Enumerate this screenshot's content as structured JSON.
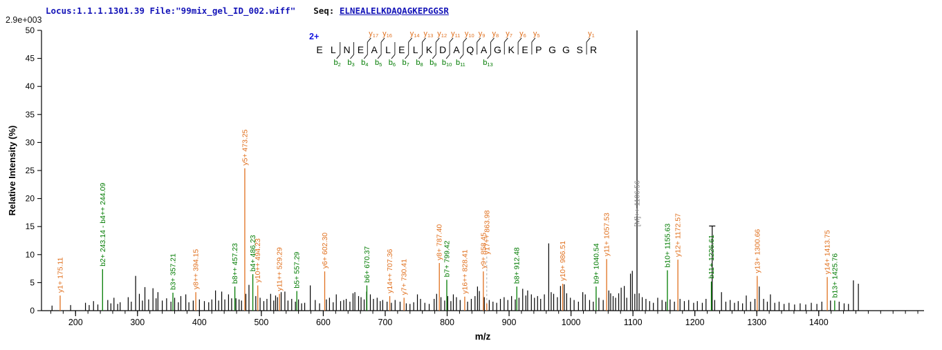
{
  "header": {
    "locus_file": "Locus:1.1.1.1301.39 File:\"99mix_gel_ID_002.wiff\"",
    "seq_label": "Seq:",
    "sequence": "ELNEALELKDAQAGKEPGGSR",
    "intensity_scale": "2.9e+003"
  },
  "colors": {
    "y_ion": "#e0701e",
    "b_ion": "#007b00",
    "precursor_label": "#808080",
    "peak": "#000000",
    "axis": "#000000",
    "header_blue": "#1414b8",
    "charge_blue": "#1414e0",
    "dashed_connector": "#aaaaaa"
  },
  "annotation": {
    "charge": "2+",
    "residues": [
      "E",
      "L",
      "N",
      "E",
      "A",
      "L",
      "E",
      "L",
      "K",
      "D",
      "A",
      "Q",
      "A",
      "G",
      "K",
      "E",
      "P",
      "G",
      "G",
      "S",
      "R"
    ],
    "gaps": [
      {
        "after": 2,
        "b": "2"
      },
      {
        "after": 3,
        "b": "3"
      },
      {
        "after": 4,
        "b": "4",
        "y": "17"
      },
      {
        "after": 5,
        "b": "5",
        "y": "16"
      },
      {
        "after": 6,
        "b": "6"
      },
      {
        "after": 7,
        "b": "7",
        "y": "14"
      },
      {
        "after": 8,
        "b": "8",
        "y": "13"
      },
      {
        "after": 9,
        "b": "9",
        "y": "12"
      },
      {
        "after": 10,
        "b": "10",
        "y": "11"
      },
      {
        "after": 11,
        "b": "11",
        "y": "10"
      },
      {
        "after": 12,
        "y": "9"
      },
      {
        "after": 13,
        "b": "13",
        "y": "8"
      },
      {
        "after": 14,
        "y": "7"
      },
      {
        "after": 15,
        "y": "6"
      },
      {
        "after": 16,
        "y": "5"
      },
      {
        "after": 20,
        "y": "1"
      }
    ]
  },
  "chart_data": {
    "type": "bar",
    "subtype": "ms2-fragment-spectrum",
    "xlabel": "m/z",
    "ylabel": "Relative  Intensity (%)",
    "x_range": [
      145,
      1570
    ],
    "y_range": [
      0,
      50
    ],
    "y_tick_step": 5,
    "x_minor_tick_step": 20,
    "x_major_ticks": [
      200,
      300,
      400,
      500,
      600,
      700,
      800,
      900,
      1000,
      1100,
      1200,
      1300,
      1400
    ],
    "grid": false,
    "labeled_peaks": [
      {
        "label": "y1+ 175.11",
        "mz": 175.11,
        "intensity": 2.7,
        "t": "y"
      },
      {
        "label": "b2+ 243.14 - b4++ 244.09",
        "mz": 243.6,
        "intensity": 7.4,
        "t": "b"
      },
      {
        "label": "b3+ 357.21",
        "mz": 357.21,
        "intensity": 3.2,
        "t": "b"
      },
      {
        "label": "y8++ 394.15",
        "mz": 394.15,
        "intensity": 3.3,
        "t": "y"
      },
      {
        "label": "b8++ 457.23",
        "mz": 457.23,
        "intensity": 4.3,
        "t": "b"
      },
      {
        "label": "y5+ 473.25",
        "mz": 473.25,
        "intensity": 25.4,
        "t": "y"
      },
      {
        "label": "b4+ 486.23",
        "mz": 486.23,
        "intensity": 6.5,
        "t": "b"
      },
      {
        "label": "y10++ 494.23",
        "mz": 494.23,
        "intensity": 4.5,
        "t": "y"
      },
      {
        "label": "y11++ 529.29",
        "mz": 529.29,
        "intensity": 3.0,
        "t": "y"
      },
      {
        "label": "b5+ 557.29",
        "mz": 557.29,
        "intensity": 3.5,
        "t": "b"
      },
      {
        "label": "y6+ 602.30",
        "mz": 602.3,
        "intensity": 7.0,
        "t": "y"
      },
      {
        "label": "b6+ 670.37",
        "mz": 670.37,
        "intensity": 4.5,
        "t": "b"
      },
      {
        "label": "y14++ 707.36",
        "mz": 707.36,
        "intensity": 2.6,
        "t": "y"
      },
      {
        "label": "y7+ 730.41",
        "mz": 730.41,
        "intensity": 2.3,
        "t": "y"
      },
      {
        "label": "y8+ 787.40",
        "mz": 787.4,
        "intensity": 8.5,
        "t": "y"
      },
      {
        "label": "b7+ 799.42",
        "mz": 799.42,
        "intensity": 5.5,
        "t": "b"
      },
      {
        "label": "y16++ 828.41",
        "mz": 828.41,
        "intensity": 2.5,
        "t": "y"
      },
      {
        "label": "y9+ 858.45",
        "mz": 858.45,
        "intensity": 7.0,
        "t": "y"
      },
      {
        "label": "y17++ 863.98",
        "mz": 863.98,
        "intensity": 1.3,
        "t": "y",
        "dashed": true,
        "label_i": 10
      },
      {
        "label": "b8+ 912.48",
        "mz": 912.48,
        "intensity": 4.3,
        "t": "b"
      },
      {
        "label": "y10+ 986.51",
        "mz": 986.51,
        "intensity": 4.8,
        "t": "y"
      },
      {
        "label": "b9+ 1040.54",
        "mz": 1040.54,
        "intensity": 4.3,
        "t": "b"
      },
      {
        "label": "y11+ 1057.53",
        "mz": 1057.53,
        "intensity": 9.2,
        "t": "y"
      },
      {
        "label": "[M]++ 1106.56",
        "mz": 1106.56,
        "intensity": 50,
        "t": "M",
        "label_i": 15
      },
      {
        "label": "b10+ 1155.63",
        "mz": 1155.63,
        "intensity": 7.2,
        "t": "b"
      },
      {
        "label": "y12+ 1172.57",
        "mz": 1172.57,
        "intensity": 9.1,
        "t": "y"
      },
      {
        "label": "b11+ 1226.61",
        "mz": 1226.61,
        "intensity": 5.2,
        "t": "b"
      },
      {
        "label": "y13+ 1300.66",
        "mz": 1300.66,
        "intensity": 6.2,
        "t": "y"
      },
      {
        "label": "y14+ 1413.75",
        "mz": 1413.75,
        "intensity": 6.0,
        "t": "y"
      },
      {
        "label": "b13+ 1425.76",
        "mz": 1425.76,
        "intensity": 1.8,
        "t": "b"
      }
    ],
    "capped_peaks": [
      [
        1228,
        15.1
      ]
    ],
    "unlabeled_peaks": [
      [
        162,
        0.9
      ],
      [
        192,
        1.0
      ],
      [
        216,
        1.4
      ],
      [
        222,
        1.0
      ],
      [
        229,
        1.7
      ],
      [
        236,
        1.1
      ],
      [
        252,
        1.9
      ],
      [
        257,
        1.3
      ],
      [
        262,
        2.3
      ],
      [
        268,
        1.2
      ],
      [
        272,
        1.5
      ],
      [
        285,
        2.4
      ],
      [
        290,
        1.6
      ],
      [
        297,
        6.2
      ],
      [
        303,
        3.0
      ],
      [
        308,
        1.8
      ],
      [
        312,
        4.2
      ],
      [
        318,
        2.0
      ],
      [
        325,
        4.0
      ],
      [
        330,
        2.2
      ],
      [
        333,
        3.3
      ],
      [
        340,
        1.8
      ],
      [
        347,
        2.2
      ],
      [
        354,
        1.6
      ],
      [
        360,
        2.3
      ],
      [
        366,
        1.5
      ],
      [
        370,
        2.6
      ],
      [
        378,
        2.9
      ],
      [
        383,
        1.5
      ],
      [
        390,
        1.8
      ],
      [
        400,
        2.0
      ],
      [
        408,
        1.7
      ],
      [
        415,
        1.5
      ],
      [
        420,
        2.0
      ],
      [
        426,
        3.6
      ],
      [
        431,
        1.8
      ],
      [
        436,
        3.4
      ],
      [
        441,
        2.0
      ],
      [
        447,
        2.9
      ],
      [
        452,
        2.2
      ],
      [
        459,
        2.2
      ],
      [
        464,
        2.0
      ],
      [
        468,
        1.8
      ],
      [
        475,
        3.0
      ],
      [
        480,
        4.6
      ],
      [
        491,
        2.6
      ],
      [
        498,
        2.3
      ],
      [
        504,
        1.7
      ],
      [
        509,
        2.1
      ],
      [
        515,
        3.0
      ],
      [
        520,
        1.8
      ],
      [
        523,
        2.7
      ],
      [
        526,
        2.4
      ],
      [
        532,
        3.3
      ],
      [
        538,
        3.4
      ],
      [
        543,
        1.8
      ],
      [
        549,
        2.1
      ],
      [
        555,
        1.6
      ],
      [
        560,
        2.0
      ],
      [
        565,
        1.3
      ],
      [
        570,
        1.4
      ],
      [
        579,
        4.5
      ],
      [
        587,
        1.9
      ],
      [
        594,
        1.3
      ],
      [
        605,
        2.0
      ],
      [
        610,
        2.3
      ],
      [
        616,
        1.5
      ],
      [
        621,
        2.9
      ],
      [
        628,
        1.7
      ],
      [
        633,
        1.9
      ],
      [
        637,
        2.1
      ],
      [
        643,
        1.6
      ],
      [
        648,
        3.1
      ],
      [
        651,
        3.3
      ],
      [
        657,
        2.6
      ],
      [
        661,
        2.4
      ],
      [
        666,
        2.0
      ],
      [
        670,
        3.4
      ],
      [
        676,
        2.9
      ],
      [
        681,
        2.1
      ],
      [
        687,
        2.3
      ],
      [
        692,
        1.7
      ],
      [
        696,
        1.9
      ],
      [
        703,
        1.6
      ],
      [
        710,
        1.4
      ],
      [
        716,
        1.9
      ],
      [
        724,
        1.6
      ],
      [
        734,
        1.3
      ],
      [
        740,
        1.2
      ],
      [
        746,
        1.5
      ],
      [
        752,
        2.9
      ],
      [
        757,
        2.1
      ],
      [
        764,
        1.4
      ],
      [
        771,
        1.2
      ],
      [
        779,
        2.1
      ],
      [
        783,
        3.0
      ],
      [
        790,
        2.4
      ],
      [
        796,
        1.8
      ],
      [
        801,
        2.6
      ],
      [
        806,
        1.7
      ],
      [
        810,
        2.9
      ],
      [
        815,
        2.4
      ],
      [
        821,
        1.9
      ],
      [
        833,
        1.6
      ],
      [
        839,
        2.1
      ],
      [
        845,
        2.6
      ],
      [
        849,
        4.3
      ],
      [
        852,
        3.5
      ],
      [
        860,
        2.4
      ],
      [
        868,
        1.9
      ],
      [
        874,
        1.6
      ],
      [
        880,
        1.4
      ],
      [
        886,
        2.1
      ],
      [
        892,
        2.4
      ],
      [
        898,
        1.9
      ],
      [
        904,
        2.6
      ],
      [
        910,
        2.0
      ],
      [
        916,
        2.3
      ],
      [
        922,
        3.9
      ],
      [
        927,
        2.7
      ],
      [
        930,
        3.6
      ],
      [
        936,
        2.9
      ],
      [
        941,
        2.3
      ],
      [
        946,
        2.6
      ],
      [
        951,
        2.1
      ],
      [
        957,
        2.9
      ],
      [
        964,
        12.0
      ],
      [
        968,
        3.3
      ],
      [
        972,
        3.0
      ],
      [
        978,
        2.4
      ],
      [
        983,
        4.4
      ],
      [
        989,
        4.7
      ],
      [
        993,
        3.1
      ],
      [
        999,
        2.3
      ],
      [
        1005,
        1.9
      ],
      [
        1012,
        1.6
      ],
      [
        1019,
        3.3
      ],
      [
        1023,
        2.9
      ],
      [
        1030,
        1.9
      ],
      [
        1036,
        1.6
      ],
      [
        1045,
        2.3
      ],
      [
        1052,
        1.9
      ],
      [
        1061,
        3.6
      ],
      [
        1064,
        3.1
      ],
      [
        1068,
        2.6
      ],
      [
        1072,
        2.3
      ],
      [
        1077,
        3.1
      ],
      [
        1081,
        4.1
      ],
      [
        1086,
        4.4
      ],
      [
        1090,
        2.3
      ],
      [
        1096,
        6.6
      ],
      [
        1099,
        7.1
      ],
      [
        1103,
        3.0
      ],
      [
        1110,
        3.1
      ],
      [
        1115,
        2.4
      ],
      [
        1121,
        2.1
      ],
      [
        1127,
        1.7
      ],
      [
        1133,
        1.4
      ],
      [
        1140,
        2.3
      ],
      [
        1147,
        1.9
      ],
      [
        1153,
        1.6
      ],
      [
        1160,
        2.0
      ],
      [
        1167,
        1.6
      ],
      [
        1176,
        2.1
      ],
      [
        1183,
        1.7
      ],
      [
        1190,
        1.9
      ],
      [
        1198,
        1.4
      ],
      [
        1204,
        1.7
      ],
      [
        1212,
        1.4
      ],
      [
        1218,
        2.1
      ],
      [
        1232,
        1.9
      ],
      [
        1243,
        3.3
      ],
      [
        1250,
        1.6
      ],
      [
        1257,
        1.9
      ],
      [
        1264,
        1.4
      ],
      [
        1270,
        1.7
      ],
      [
        1277,
        1.3
      ],
      [
        1283,
        2.7
      ],
      [
        1290,
        1.6
      ],
      [
        1297,
        2.1
      ],
      [
        1304,
        4.3
      ],
      [
        1311,
        2.1
      ],
      [
        1317,
        1.6
      ],
      [
        1322,
        2.9
      ],
      [
        1329,
        1.4
      ],
      [
        1336,
        1.6
      ],
      [
        1344,
        1.2
      ],
      [
        1352,
        1.4
      ],
      [
        1361,
        1.1
      ],
      [
        1370,
        1.3
      ],
      [
        1379,
        1.1
      ],
      [
        1388,
        1.4
      ],
      [
        1397,
        1.2
      ],
      [
        1405,
        1.6
      ],
      [
        1419,
        1.8
      ],
      [
        1433,
        1.6
      ],
      [
        1441,
        1.3
      ],
      [
        1448,
        1.2
      ],
      [
        1456,
        5.4
      ],
      [
        1464,
        4.8
      ]
    ]
  }
}
